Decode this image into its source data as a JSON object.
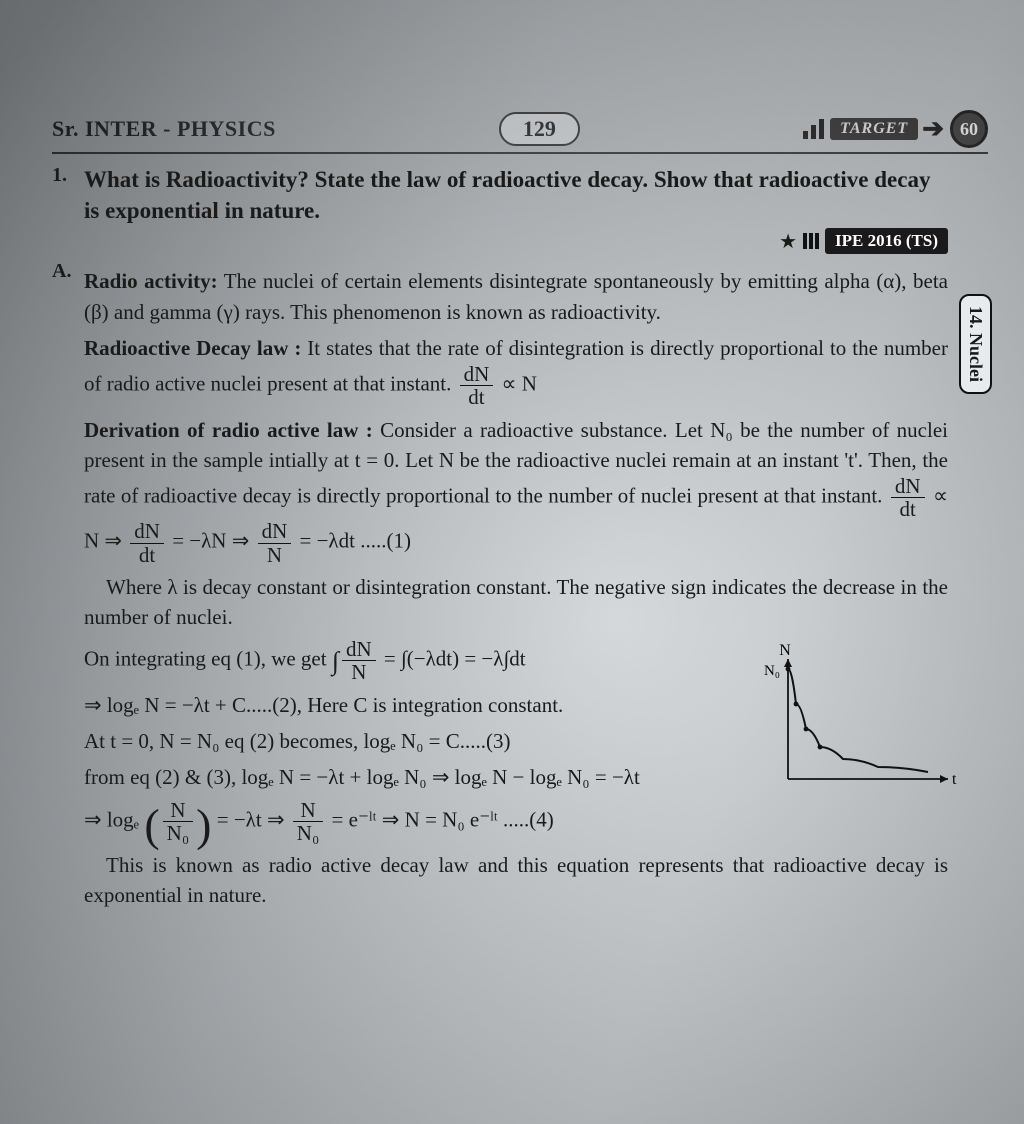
{
  "header": {
    "title": "Sr. INTER - PHYSICS",
    "page_number": "129",
    "target_label": "TARGET",
    "target_score": "60"
  },
  "side_tab": "14. Nuclei",
  "question": {
    "number": "1.",
    "text": "What is Radioactivity? State the law of radioactive decay. Show that radioactive decay is exponential in nature.",
    "exam_badge": "IPE 2016 (TS)"
  },
  "answer": {
    "label": "A.",
    "radio_activity_heading": "Radio activity:",
    "radio_activity_text": " The nuclei of certain elements disintegrate spontaneously by emitting alpha (α), beta (β) and gamma (γ) rays. This phenomenon is known as radioactivity.",
    "decay_law_heading": "Radioactive Decay law :",
    "decay_law_text": " It states that the rate of disintegration is directly proportional to the number of radio active nuclei present at that instant. ",
    "decay_law_eq_lhs_num": "dN",
    "decay_law_eq_lhs_den": "dt",
    "decay_law_eq_rhs": " ∝ N",
    "derivation_heading": "Derivation of radio active law :",
    "derivation_p1": " Consider a radioactive substance. Let N₀ be the number of nuclei present in the sample intially at t = 0. Let N be the radioactive nuclei remain at an instant 't'. Then, the rate of radioactive decay is directly proportional to the number of nuclei present at that instant. ",
    "eq1_a_num": "dN",
    "eq1_a_den": "dt",
    "eq1_a_tail": " ∝ N ⇒ ",
    "eq1_b_num": "dN",
    "eq1_b_den": "dt",
    "eq1_b_tail": " = −λN ⇒ ",
    "eq1_c_num": "dN",
    "eq1_c_den": "N",
    "eq1_c_tail": " = −λdt .....(1)",
    "lambda_note": "Where λ is decay constant or disintegration constant. The negative sign indicates the decrease in the number of nuclei.",
    "integrate_lead": "On integrating eq (1), we get ",
    "int_lhs_num": "dN",
    "int_lhs_den": "N",
    "int_mid": " = ∫(−λdt) = −λ∫dt",
    "eq2": "⇒ logₑ N = −λt + C.....(2), Here C is integration constant.",
    "eq3": "At t = 0, N = N₀ eq (2) becomes,  logₑ N₀ = C.....(3)",
    "eq23": "from eq (2) & (3),  logₑ N = −λt + logₑ N₀  ⇒ logₑ N − logₑ N₀ = −λt",
    "eq4_lead": "⇒ logₑ",
    "eq4_num": "N",
    "eq4_den": "N₀",
    "eq4_mid": " = −λt   ⇒ ",
    "eq4_num2": "N",
    "eq4_den2": "N₀",
    "eq4_exp": " = e⁻ˡᵗ   ⇒ N = N₀ e⁻ˡᵗ .....(4)",
    "conclusion": "This is known as radio active decay law and this equation represents that radioactive decay is exponential in nature."
  },
  "chart": {
    "type": "line",
    "x_label": "t",
    "y_label": "N",
    "origin_label": "N₀",
    "stroke": "#111111",
    "axis_color": "#111111",
    "points": [
      [
        0,
        0
      ],
      [
        8,
        35
      ],
      [
        18,
        60
      ],
      [
        32,
        78
      ],
      [
        55,
        90
      ],
      [
        90,
        98
      ],
      [
        140,
        103
      ]
    ],
    "dot_radius": 2.4
  },
  "colors": {
    "text": "#1a1a1a",
    "badge_bg": "#1a1a1a",
    "badge_fg": "#ffffff",
    "page_bg_light": "#c5cacd"
  }
}
